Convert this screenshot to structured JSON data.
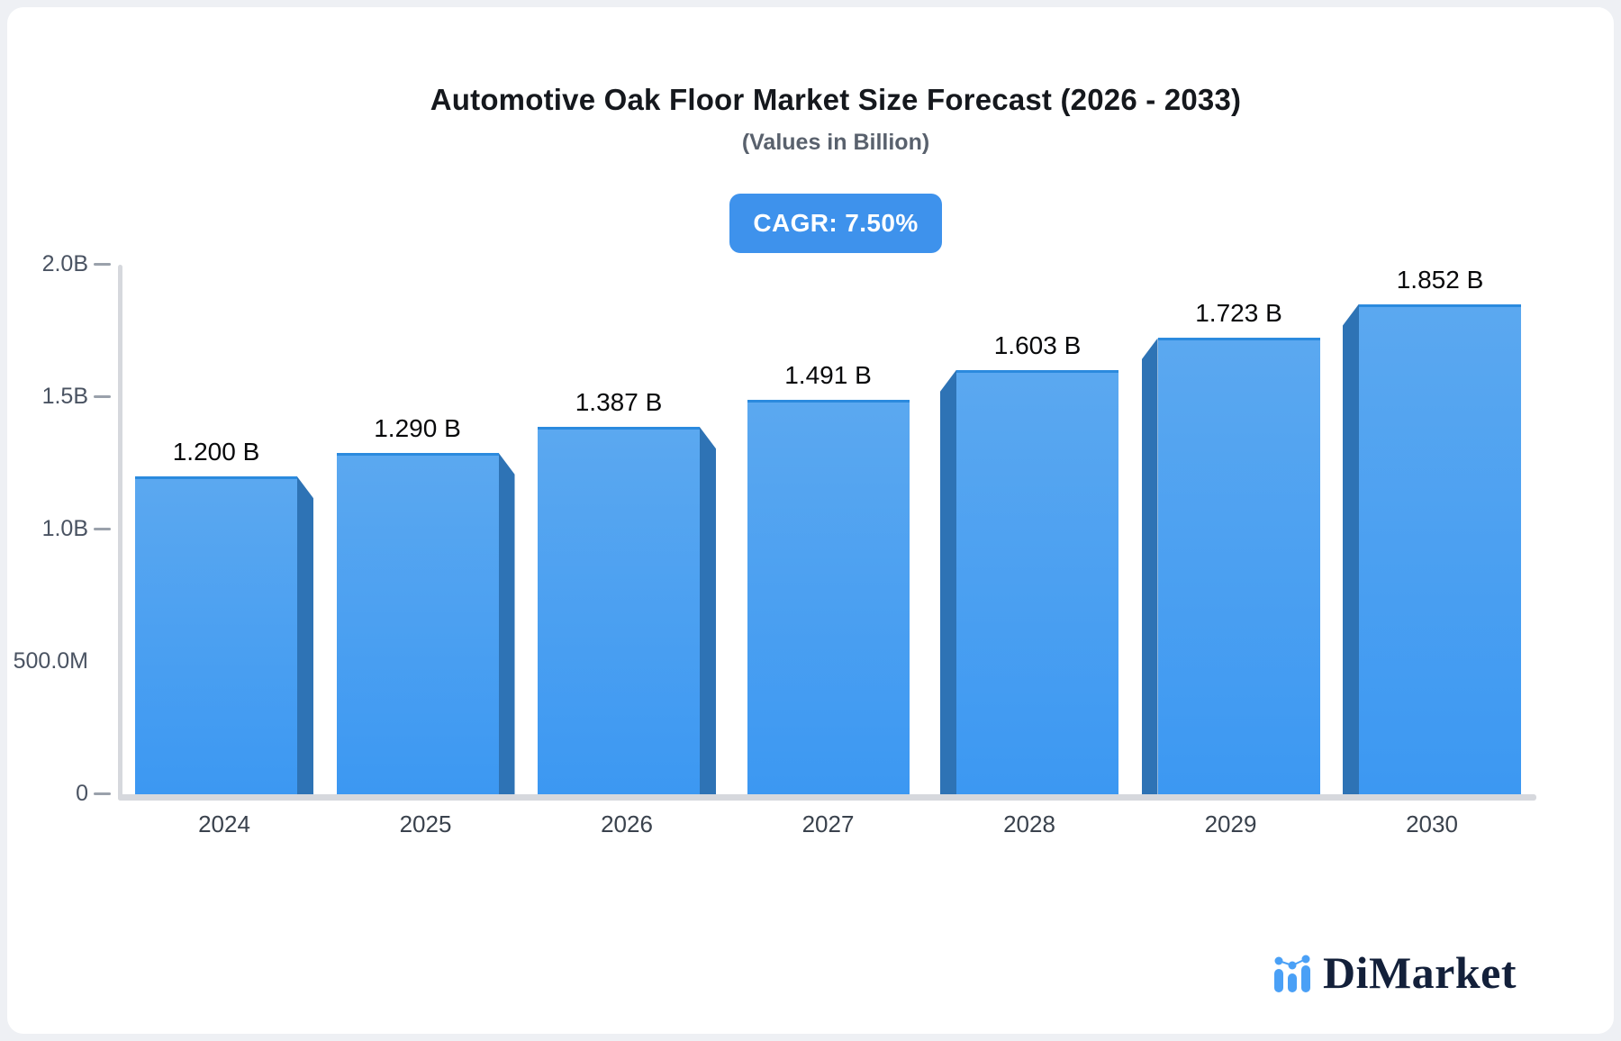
{
  "header": {
    "title": "Automotive Oak Floor Market Size Forecast (2026 - 2033)",
    "subtitle": "(Values in Billion)",
    "cagr_badge": "CAGR: 7.50%"
  },
  "chart_data": {
    "type": "bar",
    "title": "Automotive Oak Floor Market Size Forecast (2026 - 2033)",
    "subtitle": "(Values in Billion)",
    "cagr": "7.50%",
    "categories": [
      "2024",
      "2025",
      "2026",
      "2027",
      "2028",
      "2029",
      "2030"
    ],
    "values": [
      1.2,
      1.29,
      1.387,
      1.491,
      1.603,
      1.723,
      1.852
    ],
    "bar_labels": [
      "1.200 B",
      "1.290 B",
      "1.387 B",
      "1.491 B",
      "1.603 B",
      "1.723 B",
      "1.852 B"
    ],
    "xlabel": "",
    "ylabel": "",
    "ylim": [
      0,
      2.0
    ],
    "y_ticks": [
      {
        "label": "2.0B",
        "value": 2.0,
        "dash": true
      },
      {
        "label": "1.5B",
        "value": 1.5,
        "dash": true
      },
      {
        "label": "1.0B",
        "value": 1.0,
        "dash": true
      },
      {
        "label": "500.0M",
        "value": 0.5,
        "dash": false
      },
      {
        "label": "0",
        "value": 0.0,
        "dash": true
      }
    ],
    "grid": false,
    "legend": false
  },
  "footer": {
    "brand": "DiMarket"
  },
  "colors": {
    "bar_face_top": "#5ba8f0",
    "bar_face_bottom": "#3c98f2",
    "bar_top_edge": "#2b8ade",
    "bar_side": "#2e73b5",
    "badge_bg": "#3e92ec",
    "axis": "#d6d8dd",
    "tick_dash": "#9aa1ab",
    "logo_blue": "#4aa0f6",
    "logo_navy": "#13203a"
  }
}
